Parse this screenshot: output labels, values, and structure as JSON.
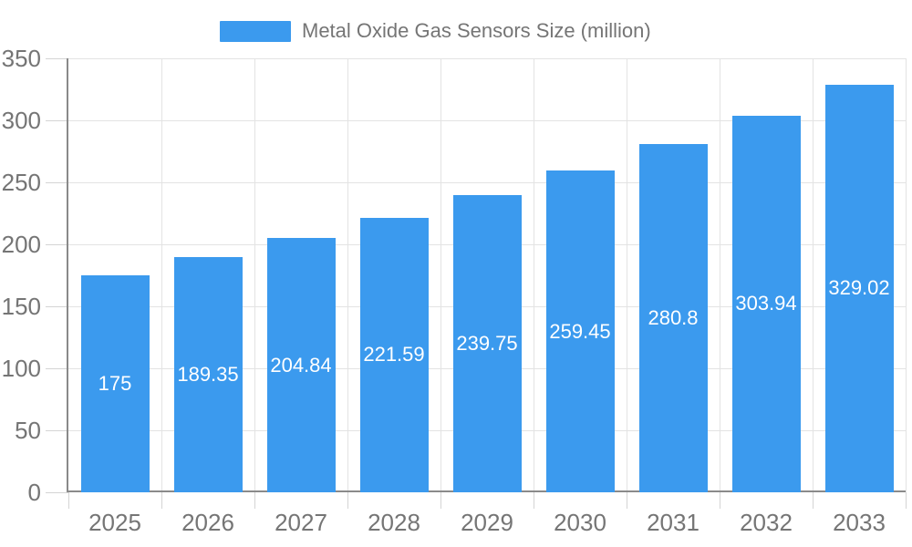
{
  "chart_data": {
    "type": "bar",
    "title": "Metal Oxide Gas Sensors Size (million)",
    "series": [
      {
        "name": "Metal Oxide Gas Sensors Size (million)",
        "values": [
          175,
          189.35,
          204.84,
          221.59,
          239.75,
          259.45,
          280.8,
          303.94,
          329.02
        ]
      }
    ],
    "categories": [
      "2025",
      "2026",
      "2027",
      "2028",
      "2029",
      "2030",
      "2031",
      "2032",
      "2033"
    ],
    "values": [
      175,
      189.35,
      204.84,
      221.59,
      239.75,
      259.45,
      280.8,
      303.94,
      329.02
    ],
    "value_labels": [
      "175",
      "189.35",
      "204.84",
      "221.59",
      "239.75",
      "259.45",
      "280.8",
      "303.94",
      "329.02"
    ],
    "xlabel": "",
    "ylabel": "",
    "ylim": [
      0,
      350
    ],
    "y_ticks": [
      0,
      50,
      100,
      150,
      200,
      250,
      300,
      350
    ],
    "grid": true,
    "legend_position": "top-center",
    "data_label_position": "inside-center",
    "colors": {
      "bar": "#3b9aee",
      "label_text": "#ffffff",
      "axis_text": "#757575",
      "axis_line": "#8a8a8a",
      "gridline": "#e3e3e3",
      "tick": "#d4d4d4",
      "background": "#ffffff"
    }
  }
}
